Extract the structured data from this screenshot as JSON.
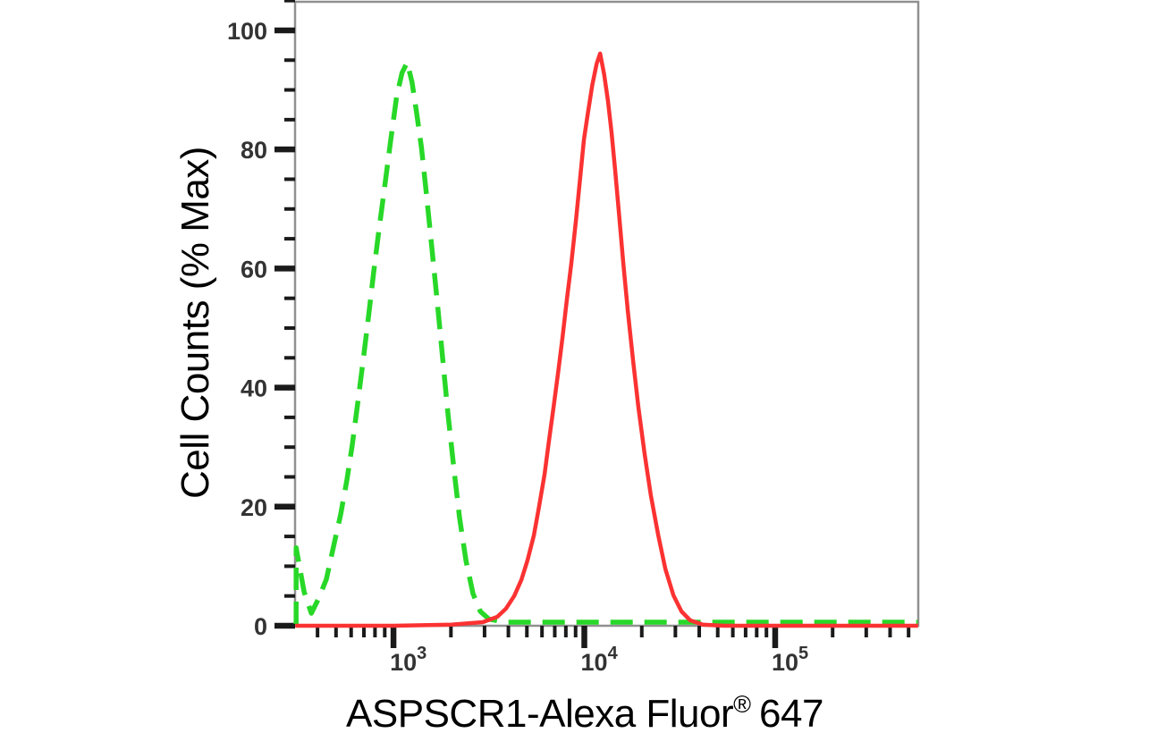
{
  "figure": {
    "background": "#ffffff"
  },
  "chart_data": {
    "type": "line",
    "title": "",
    "ylabel": "Cell Counts (% Max)",
    "xlabel_parts": {
      "text": "ASPSCR1-Alexa Fluor",
      "registered": "®",
      "suffix": "647"
    },
    "x_scale": "log10",
    "x_range": [
      305,
      562000
    ],
    "y_range": [
      0,
      104.8
    ],
    "grid": false,
    "legend": "none",
    "frame_color": "#909090",
    "tick_color": "#1a1a1a",
    "tick_label_color": "#333333",
    "y_ticks_major": [
      {
        "value": 0,
        "label": "0"
      },
      {
        "value": 20,
        "label": "20"
      },
      {
        "value": 40,
        "label": "40"
      },
      {
        "value": 60,
        "label": "60"
      },
      {
        "value": 80,
        "label": "80"
      },
      {
        "value": 100,
        "label": "100"
      }
    ],
    "y_ticks_minor": [
      5,
      10,
      15,
      25,
      30,
      35,
      45,
      50,
      55,
      65,
      70,
      75,
      85,
      90,
      95,
      105
    ],
    "x_ticks_major": [
      {
        "value": 1000,
        "base": "10",
        "exp": "3"
      },
      {
        "value": 10000,
        "base": "10",
        "exp": "4"
      },
      {
        "value": 100000,
        "base": "10",
        "exp": "5"
      }
    ],
    "x_ticks_minor": [
      400,
      500,
      600,
      700,
      800,
      900,
      2000,
      3000,
      4000,
      5000,
      6000,
      7000,
      8000,
      9000,
      20000,
      30000,
      40000,
      50000,
      60000,
      70000,
      80000,
      90000,
      200000,
      300000,
      400000,
      500000
    ],
    "series": [
      {
        "name": "control-dashed-green",
        "color": "#28d828",
        "line_style": "dashed",
        "stroke_width": 5.5,
        "dash": "25 13",
        "points": [
          [
            309,
            0.3
          ],
          [
            309,
            13.1
          ],
          [
            340,
            5.7
          ],
          [
            371,
            2.1
          ],
          [
            404,
            4.5
          ],
          [
            445,
            7.8
          ],
          [
            485,
            13.3
          ],
          [
            529,
            18.7
          ],
          [
            571,
            24.6
          ],
          [
            609,
            30.5
          ],
          [
            650,
            37.4
          ],
          [
            693,
            44.5
          ],
          [
            740,
            52.0
          ],
          [
            789,
            59.6
          ],
          [
            841,
            66.7
          ],
          [
            898,
            73.6
          ],
          [
            968,
            81.7
          ],
          [
            1040,
            89.0
          ],
          [
            1110,
            92.9
          ],
          [
            1180,
            94.6
          ],
          [
            1250,
            91.3
          ],
          [
            1320,
            86.3
          ],
          [
            1400,
            80.4
          ],
          [
            1490,
            72.4
          ],
          [
            1590,
            63.3
          ],
          [
            1700,
            54.0
          ],
          [
            1810,
            44.9
          ],
          [
            1930,
            35.6
          ],
          [
            2080,
            25.9
          ],
          [
            2220,
            18.1
          ],
          [
            2400,
            10.9
          ],
          [
            2610,
            5.4
          ],
          [
            2850,
            2.4
          ],
          [
            3170,
            1.1
          ],
          [
            3850,
            0.6
          ],
          [
            8000,
            0.6
          ],
          [
            20000,
            0.6
          ],
          [
            60000,
            0.6
          ],
          [
            150000,
            0.6
          ],
          [
            350000,
            0.6
          ],
          [
            558000,
            0.6
          ]
        ]
      },
      {
        "name": "ASPSCR1-solid-red",
        "color": "#fb3232",
        "line_style": "solid",
        "stroke_width": 4.5,
        "dash": "",
        "points": [
          [
            306,
            0
          ],
          [
            1000,
            0
          ],
          [
            2020,
            0.2
          ],
          [
            2940,
            0.6
          ],
          [
            3500,
            1.5
          ],
          [
            3890,
            2.9
          ],
          [
            4290,
            5.0
          ],
          [
            4680,
            7.7
          ],
          [
            5040,
            11.0
          ],
          [
            5440,
            15.2
          ],
          [
            5800,
            20.1
          ],
          [
            6190,
            25.5
          ],
          [
            6530,
            31.1
          ],
          [
            6900,
            36.7
          ],
          [
            7280,
            42.4
          ],
          [
            7680,
            48.4
          ],
          [
            8100,
            54.8
          ],
          [
            8550,
            60.9
          ],
          [
            9030,
            68.0
          ],
          [
            9530,
            75.6
          ],
          [
            9950,
            81.7
          ],
          [
            10400,
            85.8
          ],
          [
            11000,
            90.8
          ],
          [
            11600,
            94.4
          ],
          [
            12100,
            96.1
          ],
          [
            12700,
            92.6
          ],
          [
            13300,
            88.1
          ],
          [
            13900,
            82.8
          ],
          [
            14500,
            76.5
          ],
          [
            15200,
            69.2
          ],
          [
            16000,
            60.9
          ],
          [
            16900,
            52.8
          ],
          [
            18000,
            44.6
          ],
          [
            19200,
            36.7
          ],
          [
            20700,
            28.8
          ],
          [
            22300,
            21.9
          ],
          [
            24400,
            15.2
          ],
          [
            26600,
            9.5
          ],
          [
            29300,
            5.1
          ],
          [
            32300,
            2.4
          ],
          [
            35900,
            0.9
          ],
          [
            41800,
            0.2
          ],
          [
            54000,
            0
          ],
          [
            561000,
            0
          ]
        ]
      }
    ]
  }
}
